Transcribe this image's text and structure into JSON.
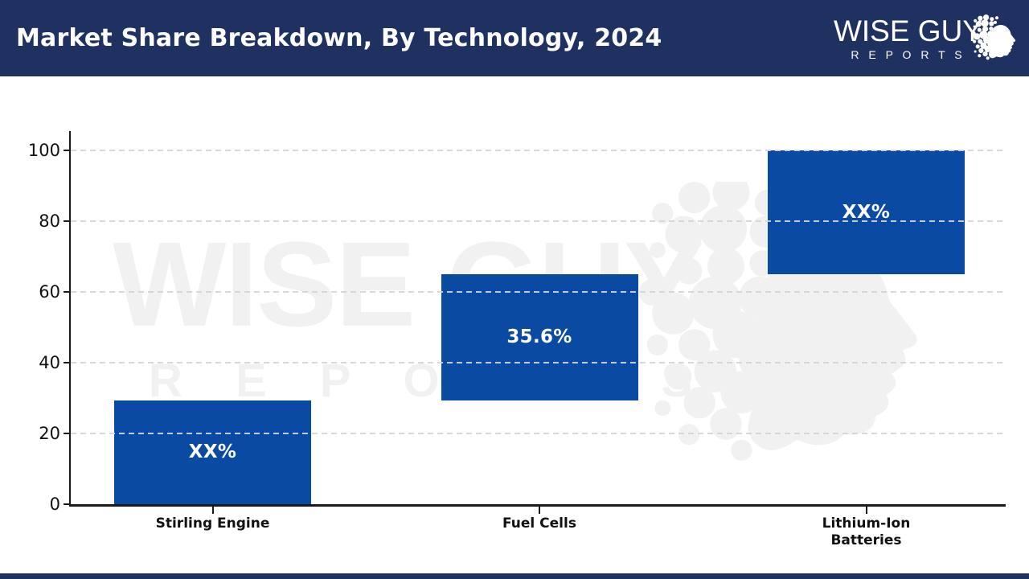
{
  "header": {
    "title": "Market Share Breakdown, By Technology, 2024",
    "brand": {
      "name": "WISE GUY",
      "sub": "R E P O R T S"
    }
  },
  "watermark": {
    "line1": "WISE GUY",
    "line2": "R E P O R T S"
  },
  "chart_data": {
    "type": "bar",
    "subtype": "floating-waterfall",
    "title": "Market Share Breakdown, By Technology, 2024",
    "categories": [
      "Stirling Engine",
      "Fuel Cells",
      "Lithium-Ion Batteries"
    ],
    "bars": [
      {
        "category": "Stirling Engine",
        "base": 0,
        "top": 29.4,
        "label": "XX%"
      },
      {
        "category": "Fuel Cells",
        "base": 29.4,
        "top": 65,
        "label": "35.6%",
        "value": 35.6
      },
      {
        "category": "Lithium-Ion Batteries",
        "base": 65,
        "top": 100,
        "label": "XX%"
      }
    ],
    "yticks": [
      0,
      20,
      40,
      60,
      80,
      100
    ],
    "ylim": [
      0,
      105.5
    ],
    "grid": {
      "axis": "y",
      "style": "dashed",
      "color": "#d5d5d5"
    },
    "bar_color": "#0a4aa3",
    "label_color": "#ffffff",
    "axis_color": "#1a1a1a",
    "legend": "none"
  },
  "colors": {
    "header_bg": "#1f3160",
    "footer_bg": "#1f3160",
    "watermark": "#f1f1f1"
  }
}
